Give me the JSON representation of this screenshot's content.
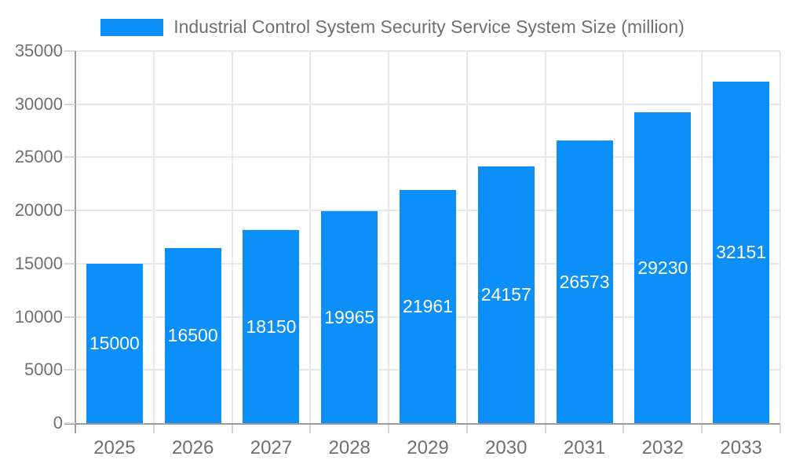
{
  "legend": {
    "label": "Industrial Control System Security Service System Size (million)"
  },
  "chart_data": {
    "type": "bar",
    "title": "Industrial Control System Security Service System Size (million)",
    "categories": [
      "2025",
      "2026",
      "2027",
      "2028",
      "2029",
      "2030",
      "2031",
      "2032",
      "2033"
    ],
    "values": [
      15000,
      16500,
      18150,
      19965,
      21961,
      24157,
      26573,
      29230,
      32151
    ],
    "value_labels": [
      "15000",
      "16500",
      "18150",
      "19965",
      "21961",
      "24157",
      "26573",
      "29230",
      "32151"
    ],
    "xlabel": "",
    "ylabel": "",
    "ylim": [
      0,
      35000
    ],
    "ytick_step": 5000,
    "y_tick_labels": [
      "0",
      "5000",
      "10000",
      "15000",
      "20000",
      "25000",
      "30000",
      "35000"
    ],
    "grid": true,
    "legend_position": "top",
    "value_label_position": "center-inside"
  },
  "colors": {
    "bar": "#0d8ffa",
    "bar_value_text": "#ffffff",
    "axis_line": "#9b9b9b",
    "tick_mark": "#d6d6d6",
    "gridline": "#e7e7e7",
    "axis_text": "#6f6f6f",
    "background": "#ffffff"
  }
}
